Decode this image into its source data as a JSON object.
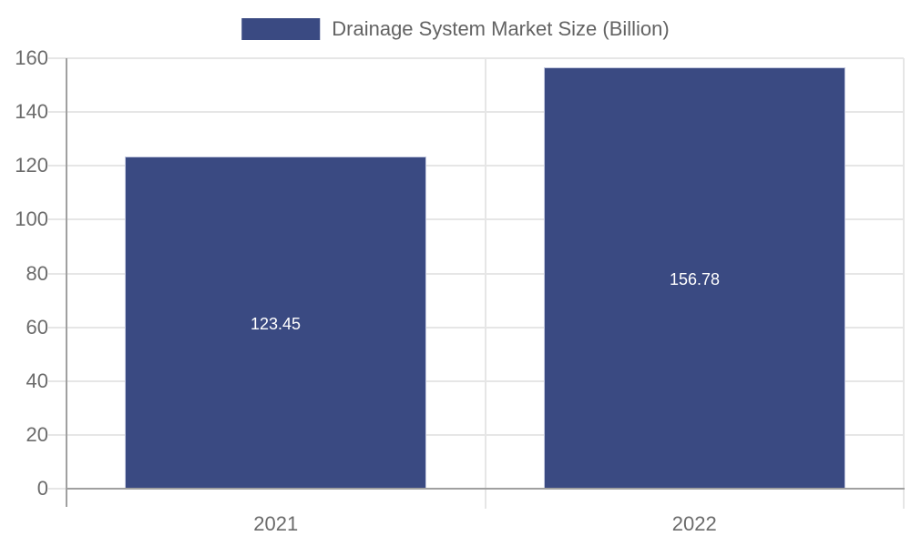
{
  "chart_data": {
    "type": "bar",
    "title": "",
    "legend": {
      "position": "top",
      "label": "Drainage System Market Size (Billion)",
      "swatch_icon": "legend-swatch"
    },
    "categories": [
      "2021",
      "2022"
    ],
    "series": [
      {
        "name": "Drainage System Market Size (Billion)",
        "values": [
          123.45,
          156.78
        ],
        "color": "#3a4a82"
      }
    ],
    "data_labels": [
      "123.45",
      "156.78"
    ],
    "xlabel": "",
    "ylabel": "",
    "ylim": [
      0,
      160
    ],
    "ytick_step": 20,
    "yticks": [
      0,
      20,
      40,
      60,
      80,
      100,
      120,
      140,
      160
    ],
    "grid": true,
    "style": {
      "bar_color": "#3a4a82",
      "bar_border_color": "#c3c8df",
      "grid_color": "#e6e6e6",
      "axis_line_color": "#a0a0a0",
      "tick_label_color": "#6b6b6b",
      "legend_text_color": "#636363",
      "annotation_color": "#ffffff",
      "background": "#ffffff"
    }
  }
}
